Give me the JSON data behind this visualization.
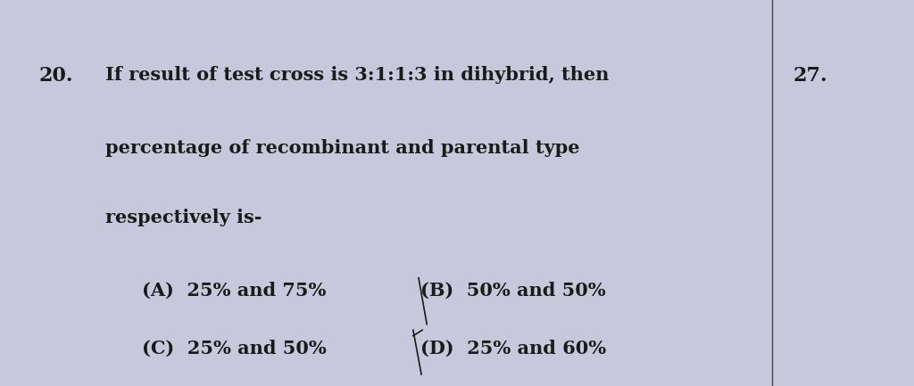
{
  "background_color": "#c8c8dc",
  "question_number": "20.",
  "question_text_line1": "If result of test cross is 3:1:1:3 in dihybrid, then",
  "question_text_line2": "percentage of recombinant and parental type",
  "question_text_line3": "respectively is-",
  "option_A": "(A)  25% and 75%",
  "option_B": "(B)  50% and 50%",
  "option_C": "(C)  25% and 50%",
  "option_D": "(D)  25% and 60%",
  "next_question_number": "27.",
  "vertical_line_x": 0.845,
  "text_color": "#1a1a1a",
  "font_size_qnum": 16,
  "font_size_text": 15,
  "font_size_options": 15
}
